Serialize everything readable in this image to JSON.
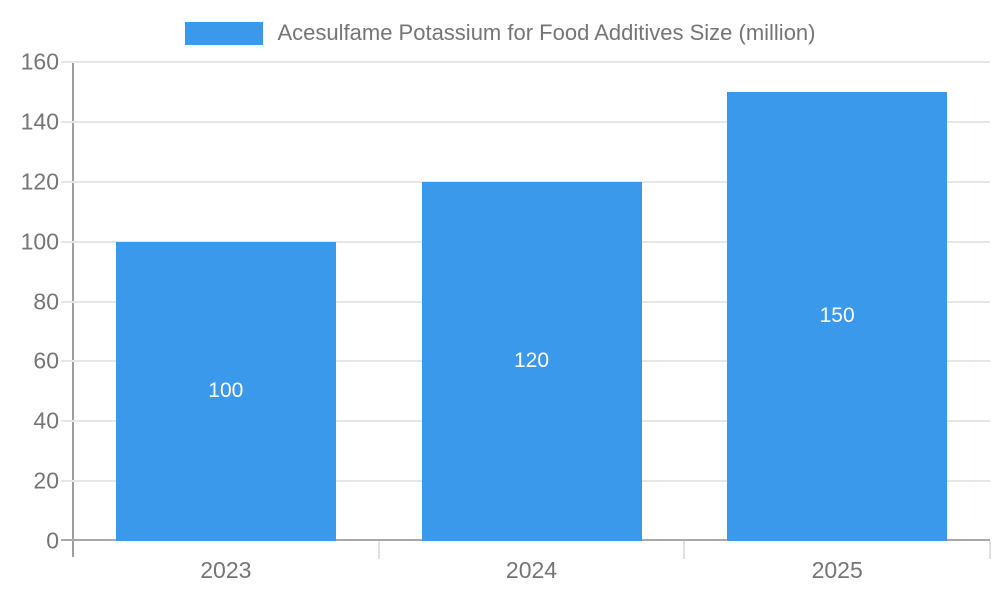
{
  "legend": {
    "label": "Acesulfame Potassium for Food Additives Size (million)",
    "swatch_color": "#3b99ec"
  },
  "chart_data": {
    "type": "bar",
    "title": "Acesulfame Potassium for Food Additives Size (million)",
    "categories": [
      "2023",
      "2024",
      "2025"
    ],
    "values": [
      100,
      120,
      150
    ],
    "data_labels": [
      "100",
      "120",
      "150"
    ],
    "xlabel": "",
    "ylabel": "",
    "ylim": [
      0,
      160
    ],
    "yticks": [
      0,
      20,
      40,
      60,
      80,
      100,
      120,
      140,
      160
    ],
    "grid": true,
    "legend_position": "top",
    "bar_color": "#3b99ec",
    "colors": {
      "grid": "#e6e6e6",
      "axis": "#9e9e9e",
      "tick_text": "#757575",
      "bar_label_text": "#ffffff",
      "background": "#ffffff"
    }
  }
}
